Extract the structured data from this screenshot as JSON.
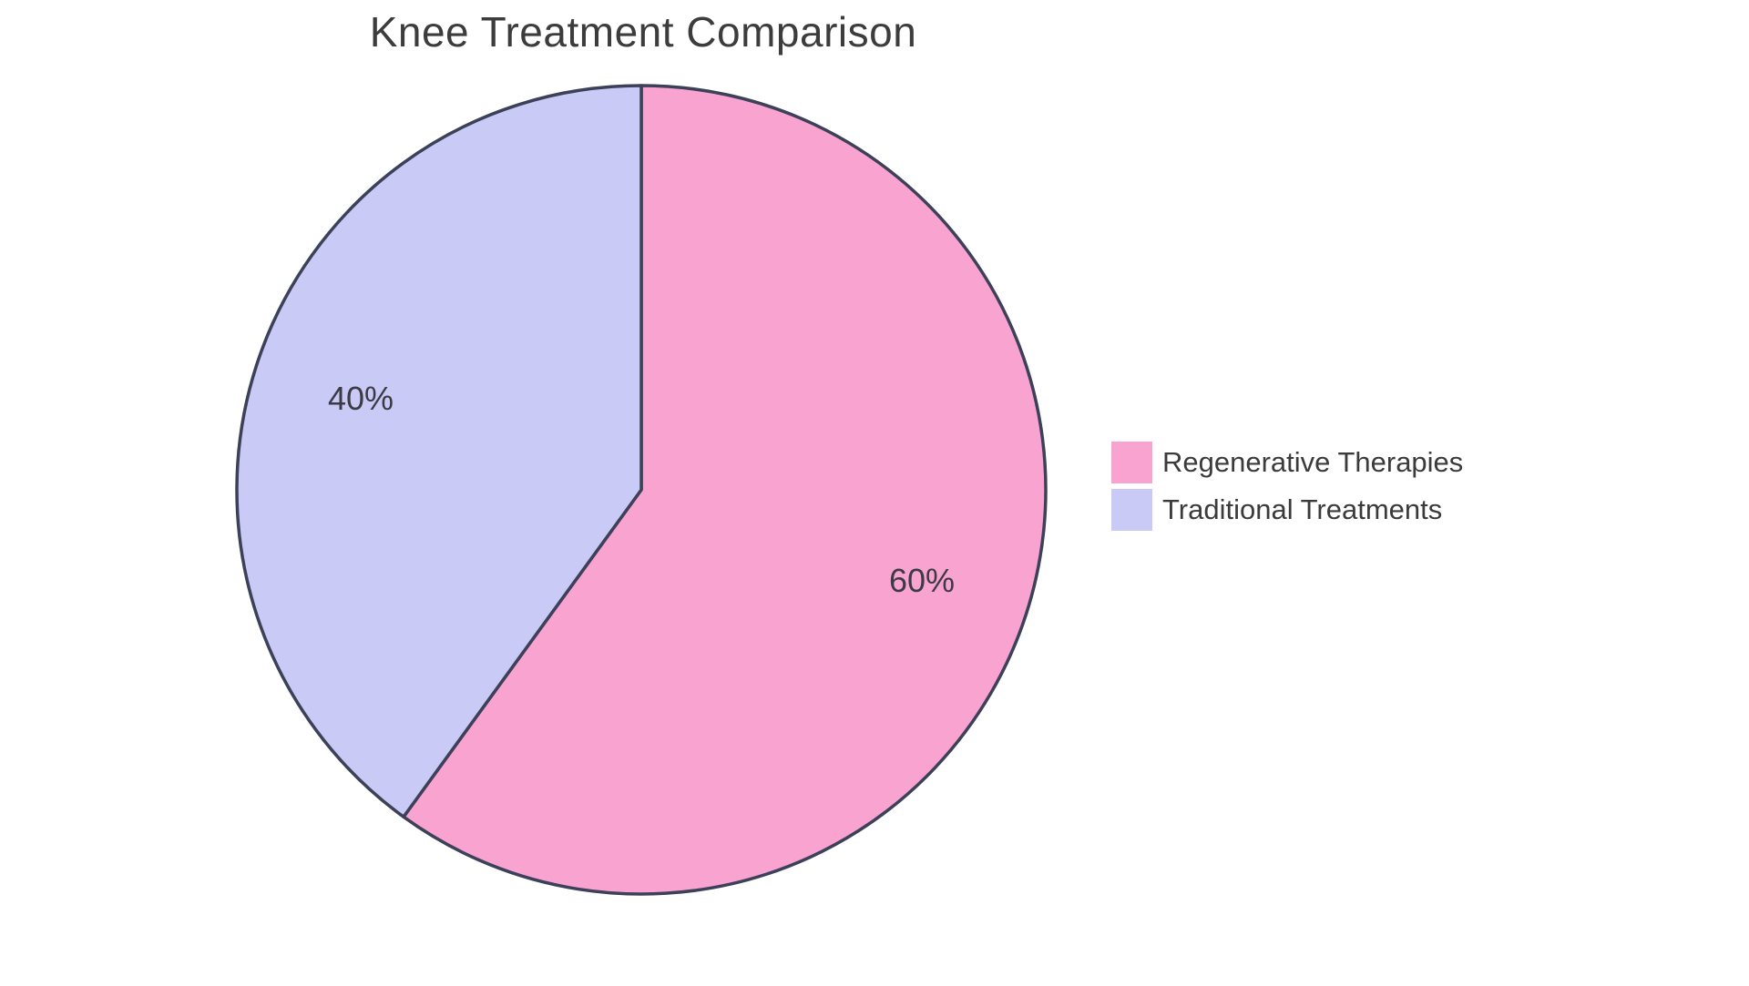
{
  "chart_data": {
    "type": "pie",
    "title": "Knee Treatment Comparison",
    "legend_position": "right",
    "direction": "clockwise",
    "start_angle_deg": 0,
    "outline_color": "#3C4058",
    "label_color": "#3B3B46",
    "title_color": "#3C3C3C",
    "segments": [
      {
        "label": "Regenerative Therapies",
        "value": 60,
        "pct_label": "60%",
        "color": "#F9A3D0"
      },
      {
        "label": "Traditional Treatments",
        "value": 40,
        "pct_label": "40%",
        "color": "#C9CAF5"
      }
    ]
  }
}
